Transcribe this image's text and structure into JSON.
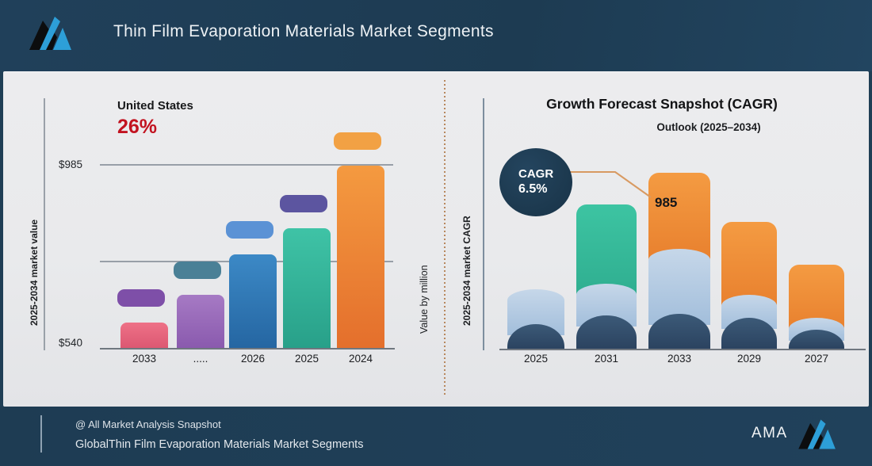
{
  "header": {
    "title": "Thin Film Evaporation Materials Market Segments"
  },
  "footer": {
    "note": "@ All Market Analysis Snapshot",
    "caption": "GlobalThin Film Evaporation Materials Market Segments",
    "brand": "AMA"
  },
  "colors": {
    "frame_navy": "#1f3e55",
    "panel_bg": "#eaebed",
    "accent_red": "#c21320",
    "badge_navy": "#1d3a50",
    "connector_tan": "#d89a62",
    "gridline": "#989fa8",
    "divider_dots": "#b8885e"
  },
  "chart_data": [
    {
      "type": "bar",
      "panel": "left",
      "title": "United States",
      "highlight_pct": "26%",
      "ylabel": "2025-2034 market value",
      "ylabel_secondary": "Value by million",
      "ylim": [
        540,
        1030
      ],
      "yticks": [
        {
          "value": 985,
          "label": "$985"
        },
        {
          "value": 540,
          "label": "$540"
        }
      ],
      "gridline_values": [
        985,
        751
      ],
      "grid": true,
      "categories": [
        "2033",
        ".....",
        "2026",
        "2025",
        "2024"
      ],
      "values": [
        601,
        668,
        766,
        830,
        981
      ],
      "values_note": "USD million, read against $540-$985 axis",
      "bar_gradients": [
        [
          "#ee7187",
          "#dc5872"
        ],
        [
          "#a67ac4",
          "#8a5aae"
        ],
        [
          "#3c89c6",
          "#2566a2"
        ],
        [
          "#3fc3a6",
          "#28a089"
        ],
        [
          "#f49a40",
          "#e46f2c"
        ]
      ],
      "float_cap_colors": [
        "#7e4fa8",
        "#4a8096",
        "#5b92d5",
        "#5c55a0",
        "#f2a144"
      ]
    },
    {
      "type": "stacked-bar",
      "panel": "right",
      "title": "Growth Forecast Snapshot (CAGR)",
      "subtitle": "Outlook (2025–2034)",
      "ylabel": "2025-2034 market CAGR",
      "badge": {
        "label": "CAGR",
        "value": "6.5%"
      },
      "annotation": {
        "category": "2033",
        "text": "985"
      },
      "categories": [
        "2025",
        "2031",
        "2033",
        "2029",
        "2027"
      ],
      "units": "relative height (no numeric y-axis shown)",
      "grid": false,
      "series": [
        {
          "name": "segment-base-navy",
          "values": [
            31,
            42,
            44,
            39,
            24
          ]
        },
        {
          "name": "segment-mid-lightblue",
          "values": [
            44,
            40,
            82,
            29,
            15
          ]
        },
        {
          "name": "segment-top-accent",
          "values": [
            0,
            100,
            96,
            92,
            67
          ]
        }
      ],
      "segment_colors": {
        "base": [
          "#3c5a78",
          "#2b4360"
        ],
        "mid": [
          "#c6d7e9",
          "#a2bedb"
        ],
        "top_by_bar": [
          null,
          "teal",
          "orange",
          "orange",
          "orange"
        ],
        "teal": [
          "#3dc4a2",
          "#2fae90"
        ],
        "orange": [
          "#f49b42",
          "#e8802e"
        ]
      }
    }
  ]
}
